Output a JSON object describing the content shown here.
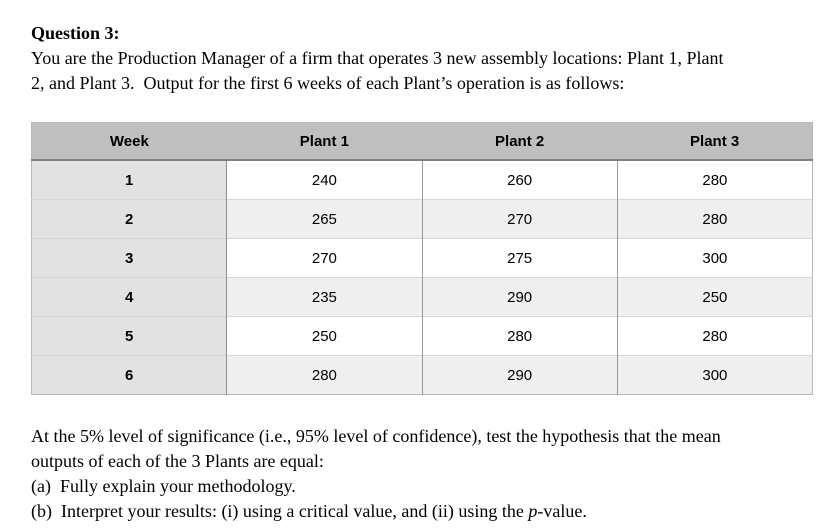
{
  "question": {
    "heading": "Question 3:",
    "intro_lines": [
      "You are the Production Manager of a firm that operates 3 new assembly locations: Plant 1, Plant",
      "2, and Plant 3.  Output for the first 6 weeks of each Plant’s operation is as follows:"
    ]
  },
  "table": {
    "columns": [
      "Week",
      "Plant 1",
      "Plant 2",
      "Plant 3"
    ],
    "rows": [
      [
        "1",
        "240",
        "260",
        "280"
      ],
      [
        "2",
        "265",
        "270",
        "280"
      ],
      [
        "3",
        "270",
        "275",
        "300"
      ],
      [
        "4",
        "235",
        "290",
        "250"
      ],
      [
        "5",
        "250",
        "280",
        "280"
      ],
      [
        "6",
        "280",
        "290",
        "300"
      ]
    ]
  },
  "closing": {
    "intro_lines": [
      "At the 5% level of significance (i.e., 95% level of confidence), test the hypothesis that the mean",
      "outputs of each of the 3 Plants are equal:"
    ],
    "item_a": "(a)  Fully explain your methodology.",
    "item_b_prefix": "(b)  Interpret your results: (i) using a critical value, and (ii) using the ",
    "item_b_italic": "p",
    "item_b_suffix": "-value."
  },
  "colors": {
    "header_bg": "#bfbfbf",
    "week_col_bg": "#e2e2e2",
    "row_alt_bg": "#efefef",
    "header_border": "#7f7f7f",
    "col_border": "#999999",
    "col_border_dark": "#8f8f8f",
    "row_border": "#d6d6d6",
    "table_outer_border": "#b7b7b7"
  }
}
